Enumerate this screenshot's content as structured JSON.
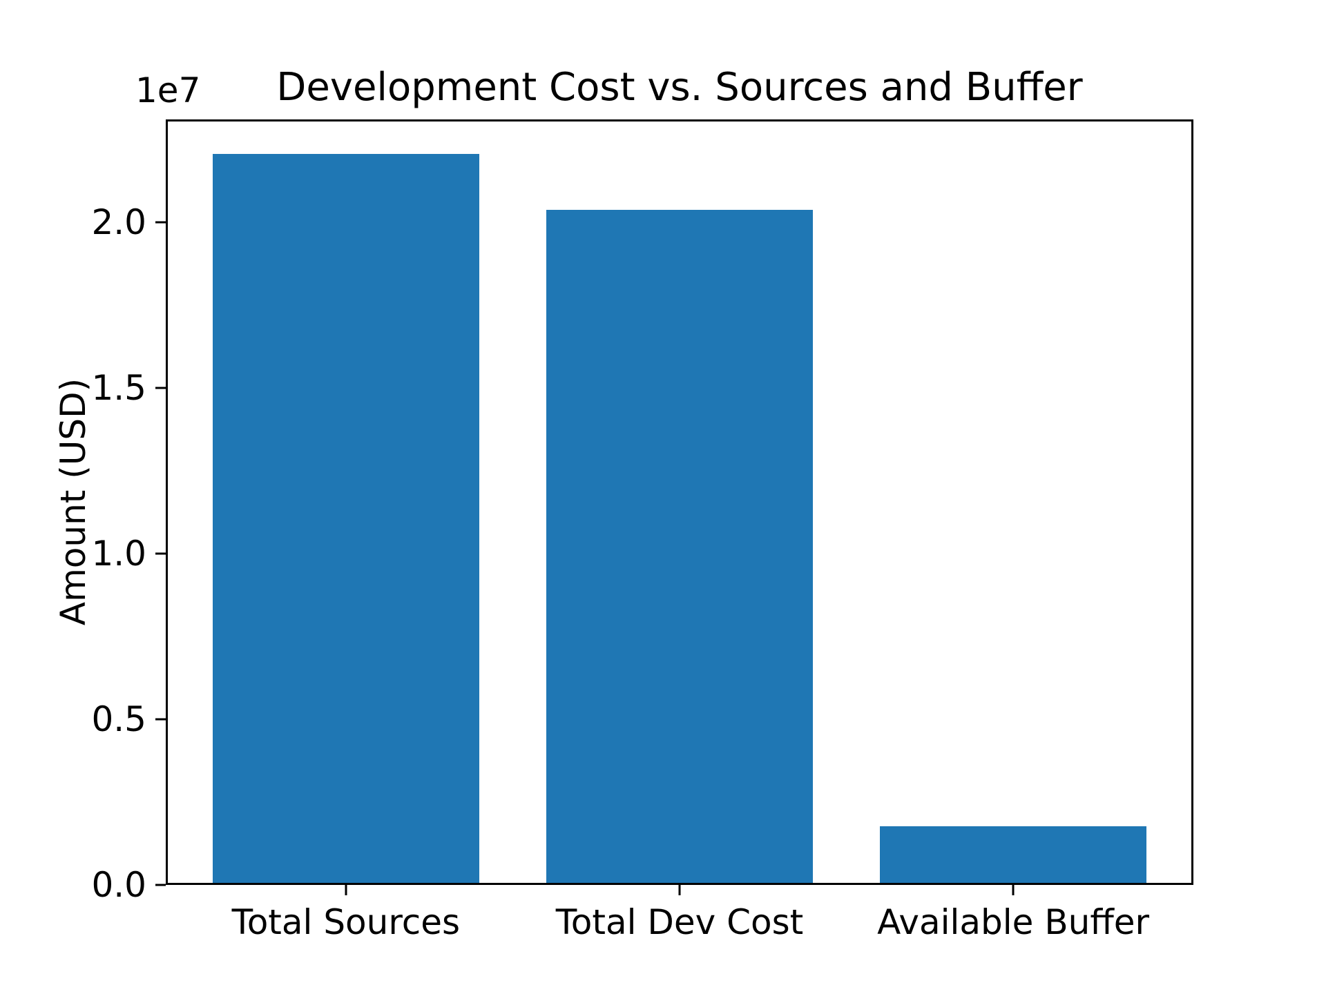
{
  "chart_data": {
    "type": "bar",
    "title": "Development Cost vs. Sources and Buffer",
    "xlabel": "",
    "ylabel": "Amount (USD)",
    "offset_label": "1e7",
    "categories": [
      "Total Sources",
      "Total Dev Cost",
      "Available Buffer"
    ],
    "values": [
      22000000,
      20300000,
      1700000
    ],
    "bar_color": "#1f77b4",
    "axis_color": "#000000",
    "background_color": "#ffffff",
    "ylim": [
      0,
      23100000
    ],
    "xlim": [
      -0.54,
      2.54
    ],
    "bar_width": 0.8,
    "yticks": [
      {
        "value": 0,
        "label": "0.0"
      },
      {
        "value": 5000000,
        "label": "0.5"
      },
      {
        "value": 10000000,
        "label": "1.0"
      },
      {
        "value": 15000000,
        "label": "1.5"
      },
      {
        "value": 20000000,
        "label": "2.0"
      }
    ],
    "grid": false,
    "legend": null
  }
}
